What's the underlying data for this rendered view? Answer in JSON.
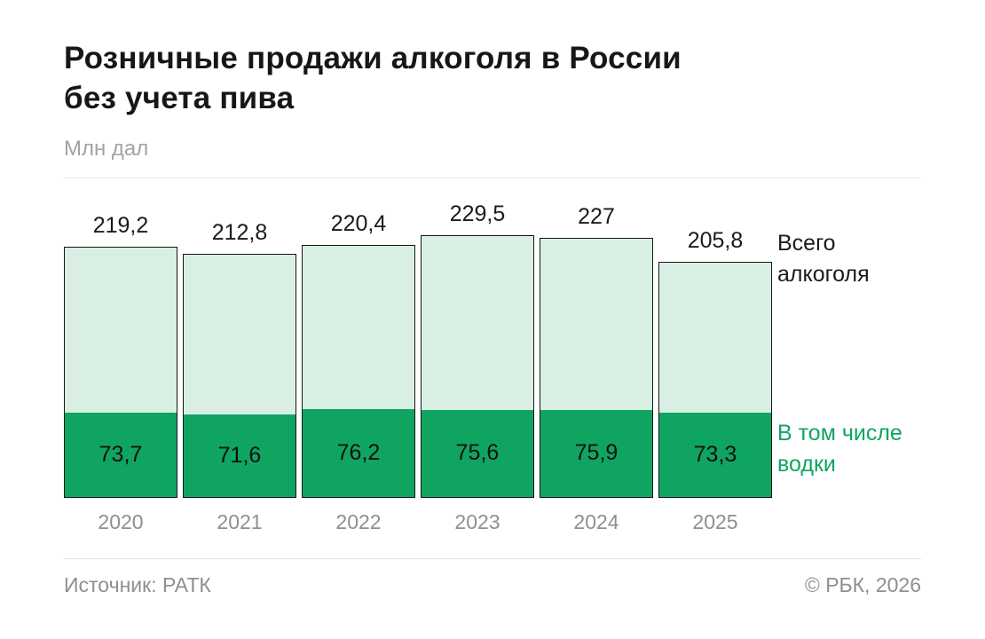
{
  "header": {
    "title_line1": "Розничные продажи алкоголя в России",
    "title_line2": "без учета пива",
    "unit_label": "Млн дал"
  },
  "chart_data": {
    "type": "bar",
    "title": "Розничные продажи алкоголя в России без учета пива",
    "ylabel": "Млн дал",
    "categories": [
      "2020",
      "2021",
      "2022",
      "2023",
      "2024",
      "2025"
    ],
    "series": [
      {
        "name": "Всего алкоголя",
        "values": [
          219.2,
          212.8,
          220.4,
          229.5,
          227,
          205.8
        ],
        "display_labels": [
          "219,2",
          "212,8",
          "220,4",
          "229,5",
          "227",
          "205,8"
        ],
        "color": "#d9efe3"
      },
      {
        "name": "В том числе водки",
        "values": [
          73.7,
          71.6,
          76.2,
          75.6,
          75.9,
          73.3
        ],
        "display_labels": [
          "73,7",
          "71,6",
          "76,2",
          "75,6",
          "75,9",
          "73,3"
        ],
        "color": "#0fa561"
      }
    ],
    "ylim": [
      0,
      235
    ],
    "grid": false,
    "legend_position": "right",
    "legend": {
      "total": {
        "line1": "Всего",
        "line2": "алкоголя",
        "color": "#1b1b1b"
      },
      "vodka": {
        "line1": "В том числе",
        "line2": "водки",
        "color": "#0fa561"
      }
    }
  },
  "footer": {
    "source": "Источник: РАТК",
    "copyright": "© РБК, 2026"
  }
}
